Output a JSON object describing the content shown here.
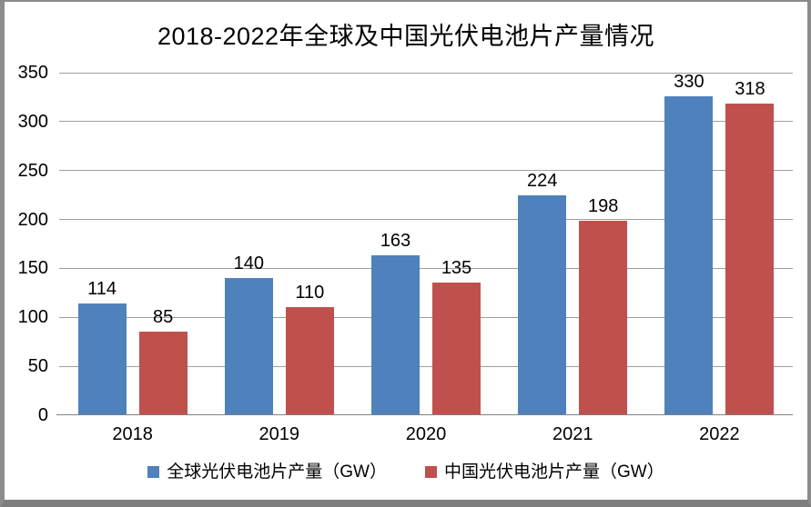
{
  "chart_data": {
    "type": "bar",
    "title": "2018-2022年全球及中国光伏电池片产量情况",
    "categories": [
      "2018",
      "2019",
      "2020",
      "2021",
      "2022"
    ],
    "series": [
      {
        "name": "全球光伏电池片产量（GW）",
        "color": "#4F81BD",
        "values": [
          114,
          140,
          163,
          224,
          330
        ]
      },
      {
        "name": "中国光伏电池片产量（GW）",
        "color": "#C0504D",
        "values": [
          85,
          110,
          135,
          198,
          318
        ]
      }
    ],
    "xlabel": "",
    "ylabel": "",
    "ylim": [
      0,
      350
    ],
    "yticks": [
      350,
      300,
      250,
      200,
      150,
      100,
      50,
      0
    ],
    "grid": true,
    "legend_position": "bottom",
    "colors": {
      "gridline": "#9e9e9e",
      "axis_line": "#818181",
      "frame_border": "#8a8a8a",
      "text": "#000000"
    }
  }
}
